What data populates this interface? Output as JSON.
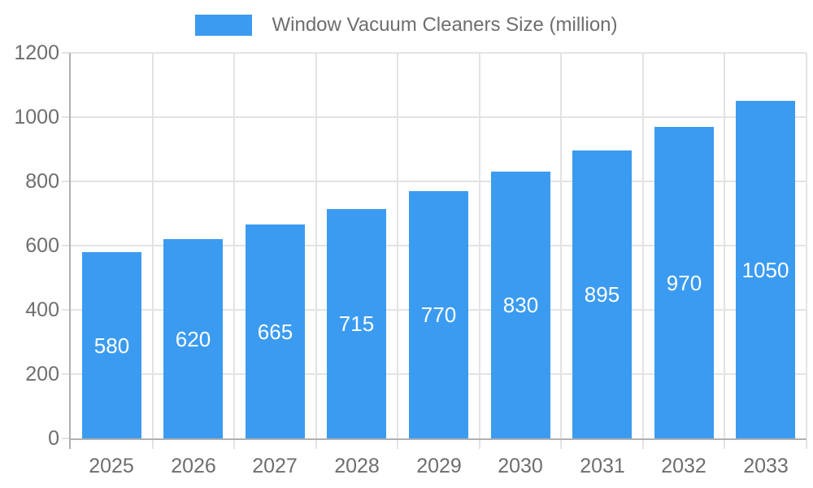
{
  "chart_data": {
    "type": "bar",
    "legend_label": "Window Vacuum Cleaners Size (million)",
    "legend_position": "top",
    "categories": [
      "2025",
      "2026",
      "2027",
      "2028",
      "2029",
      "2030",
      "2031",
      "2032",
      "2033"
    ],
    "values": [
      580,
      620,
      665,
      715,
      770,
      830,
      895,
      970,
      1050
    ],
    "xlabel": "",
    "ylabel": "",
    "ylim": [
      0,
      1200
    ],
    "yticks": [
      0,
      200,
      400,
      600,
      800,
      1000,
      1200
    ],
    "grid": true,
    "colors": {
      "bar": "#3B9BF0",
      "bar_value_label": "#FFFFFF",
      "axis_line": "#B0B0B0",
      "gridline": "#E3E3E3",
      "tick_text": "#6E6E6E",
      "background": "#FFFFFF"
    }
  }
}
